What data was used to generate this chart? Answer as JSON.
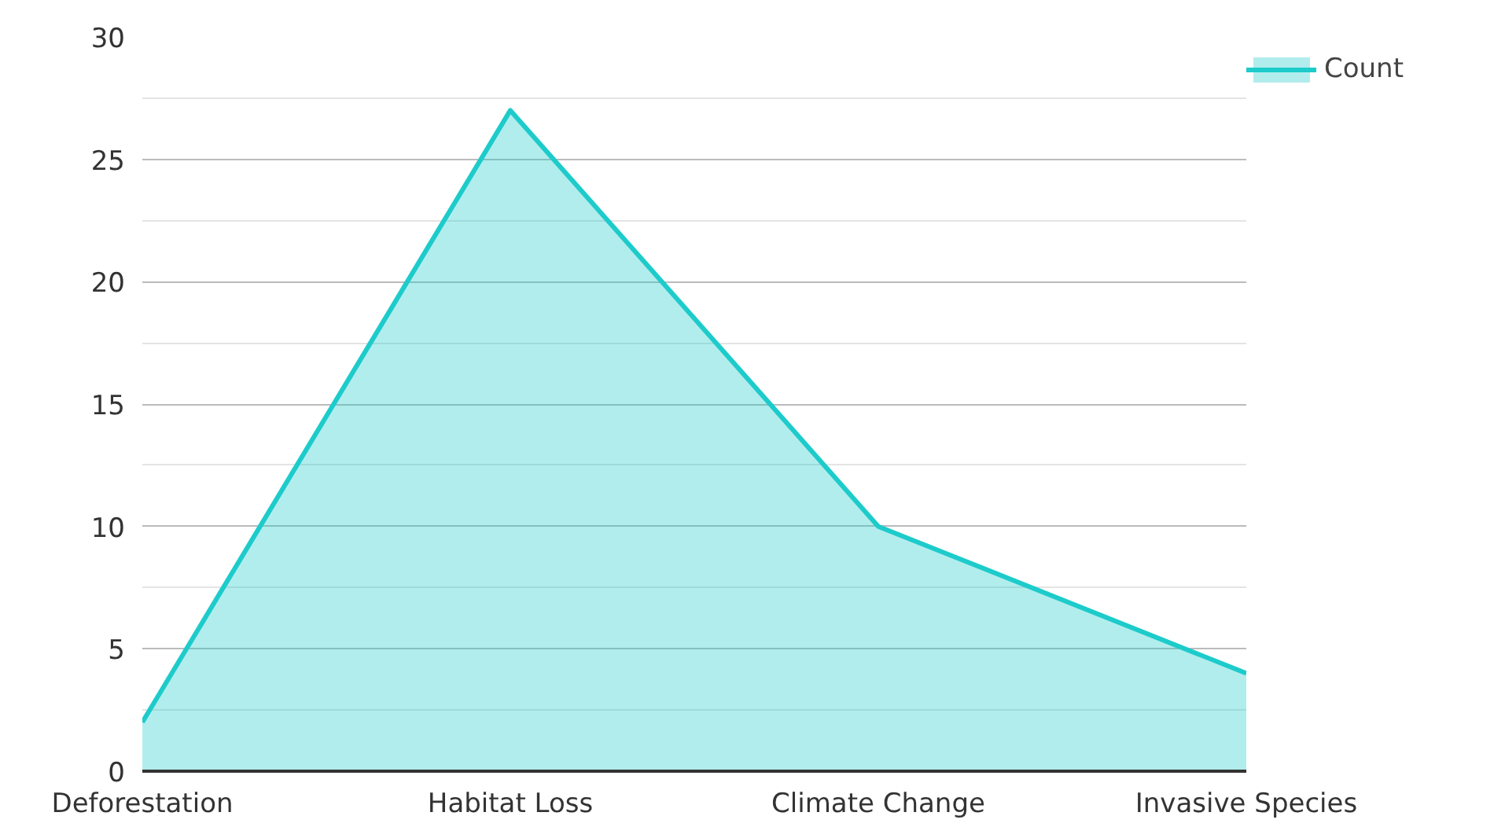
{
  "chart_data": {
    "type": "area",
    "categories": [
      "Deforestation",
      "Habitat Loss",
      "Climate Change",
      "Invasive Species"
    ],
    "series": [
      {
        "name": "Count",
        "color": "#1ecbcb",
        "values": [
          2,
          27,
          10,
          4
        ]
      }
    ],
    "ylim": [
      0,
      30
    ],
    "yticks": [
      0,
      5,
      10,
      15,
      20,
      25,
      30
    ],
    "grid": "y",
    "legend": "top right"
  }
}
